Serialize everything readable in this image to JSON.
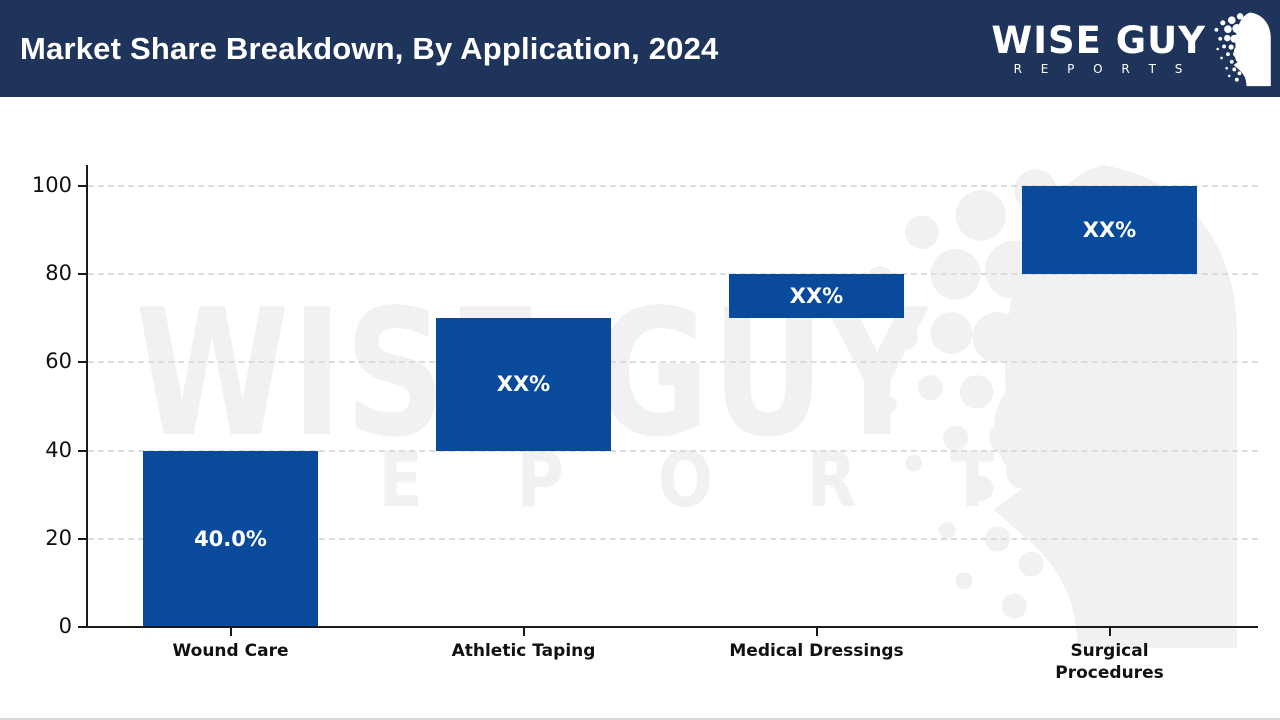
{
  "header": {
    "title": "Market Share Breakdown, By Application, 2024",
    "logo": {
      "brand": "WISE GUY",
      "sub": "R E P O R T S"
    }
  },
  "watermark": {
    "line1": "WISE GUY",
    "line2": "R E P O R T S"
  },
  "colors": {
    "header_bg": "#1f345a",
    "bar": "#0a4a9c",
    "bar_label": "#ffffff",
    "grid": "#dcdcdc",
    "axis": "#1a1a1a",
    "watermark": "#f1f1f3"
  },
  "chart_data": {
    "type": "bar",
    "subtype": "waterfall",
    "title": "Market Share Breakdown, By Application, 2024",
    "categories": [
      "Wound Care",
      "Athletic Taping",
      "Medical Dressings",
      "Surgical\nProcedures"
    ],
    "segments": [
      {
        "category": "Wound Care",
        "start": 0,
        "end": 40,
        "label": "40.0%"
      },
      {
        "category": "Athletic Taping",
        "start": 40,
        "end": 70,
        "label": "XX%"
      },
      {
        "category": "Medical Dressings",
        "start": 70,
        "end": 80,
        "label": "XX%"
      },
      {
        "category": "Surgical Procedures",
        "start": 80,
        "end": 100,
        "label": "XX%"
      }
    ],
    "ylim": [
      0,
      100
    ],
    "yticks": [
      0,
      20,
      40,
      60,
      80,
      100
    ],
    "grid": "dashed-horizontal",
    "legend": "none"
  }
}
